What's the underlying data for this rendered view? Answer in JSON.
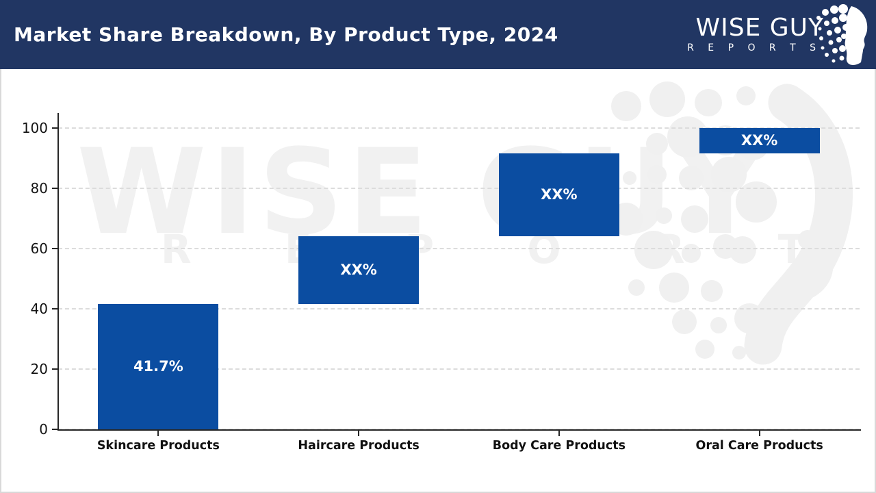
{
  "header": {
    "title": "Market Share Breakdown, By Product Type, 2024",
    "background_color": "#213663",
    "logo": {
      "line1": "WISE GUY",
      "line2": "R E P O R T S"
    }
  },
  "watermark": {
    "line1": "WISE GUY",
    "line2": "R E P O R T S"
  },
  "chart_data": {
    "type": "bar",
    "subtype": "waterfall",
    "title": "Market Share Breakdown, By Product Type, 2024",
    "categories": [
      "Skincare Products",
      "Haircare Products",
      "Body Care Products",
      "Oral Care Products"
    ],
    "segments": [
      {
        "category": "Skincare Products",
        "start": 0,
        "end": 41.7,
        "label": "41.7%"
      },
      {
        "category": "Haircare Products",
        "start": 41.7,
        "end": 64.2,
        "label": "XX%"
      },
      {
        "category": "Body Care Products",
        "start": 64.2,
        "end": 91.7,
        "label": "XX%"
      },
      {
        "category": "Oral Care Products",
        "start": 91.7,
        "end": 100,
        "label": "XX%"
      }
    ],
    "xlabel": "",
    "ylabel": "",
    "ylim": [
      0,
      100
    ],
    "yticks": [
      0,
      20,
      40,
      60,
      80,
      100
    ],
    "grid": {
      "axis": "y",
      "style": "dashed",
      "color": "#dcdcdc"
    },
    "legend": "none",
    "bar_color": "#0b4da1",
    "bar_label_color": "#ffffff"
  }
}
